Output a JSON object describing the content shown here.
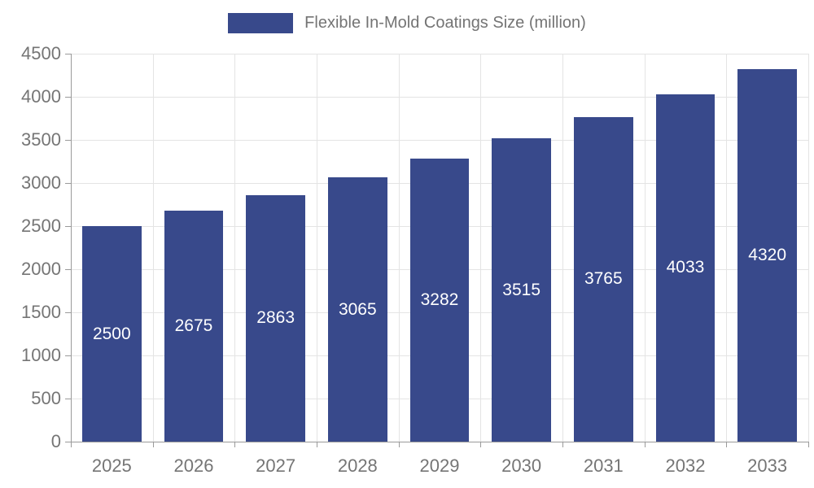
{
  "chart_data": {
    "type": "bar",
    "title": "Flexible In-Mold Coatings Size (million)",
    "legend": [
      "Flexible In-Mold Coatings Size (million)"
    ],
    "legend_position": "top",
    "categories": [
      "2025",
      "2026",
      "2027",
      "2028",
      "2029",
      "2030",
      "2031",
      "2032",
      "2033"
    ],
    "values": [
      2500,
      2675,
      2863,
      3065,
      3282,
      3515,
      3765,
      4033,
      4320
    ],
    "xlabel": "",
    "ylabel": "",
    "ylim": [
      0,
      4500
    ],
    "ytick_step": 500,
    "grid": true,
    "colors": {
      "bar": "#38498b",
      "gridline": "#e4e4e4",
      "axis": "#9a9a9a",
      "axis_text": "#757575",
      "value_label": "#ffffff",
      "background": "#ffffff"
    }
  }
}
